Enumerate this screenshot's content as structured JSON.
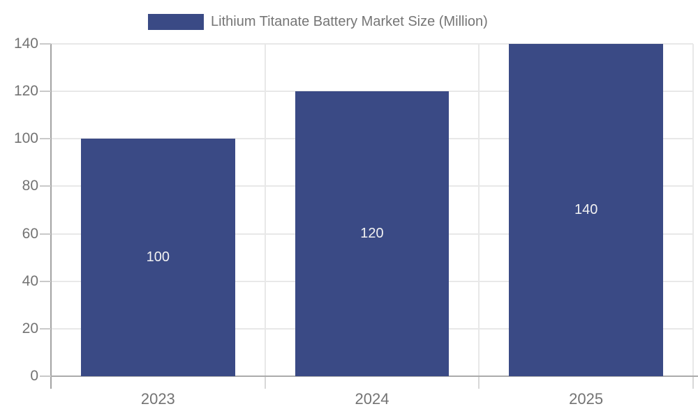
{
  "chart_data": {
    "type": "bar",
    "title": "Lithium Titanate Battery Market Size (Million)",
    "categories": [
      "2023",
      "2024",
      "2025"
    ],
    "values": [
      100,
      120,
      140
    ],
    "series": [
      {
        "name": "Lithium Titanate Battery Market Size (Million)",
        "values": [
          100,
          120,
          140
        ]
      }
    ],
    "xlabel": "",
    "ylabel": "",
    "ylim": [
      0,
      140
    ],
    "y_ticks": [
      0,
      20,
      40,
      60,
      80,
      100,
      120,
      140
    ],
    "grid": true,
    "legend_position": "top",
    "colors": {
      "bar": "#3a4a85",
      "bar_value_label": "#f2f2f2",
      "axis_text": "#737373",
      "legend_text": "#757575",
      "gridline": "#e8e8e8",
      "axis_line": "#a3a3a3"
    }
  },
  "legend": {
    "label": "Lithium Titanate Battery Market Size (Million)"
  }
}
